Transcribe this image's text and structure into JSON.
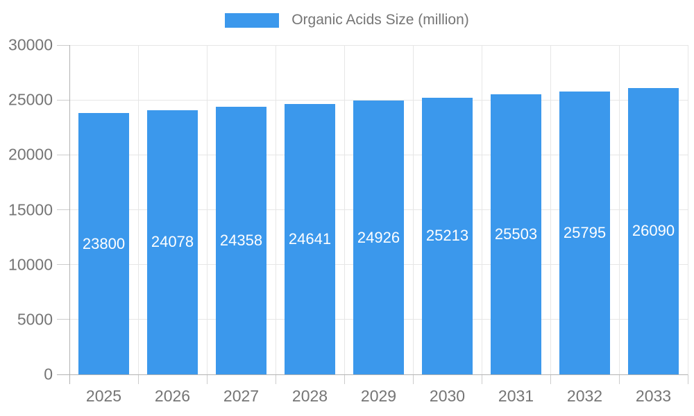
{
  "legend": {
    "label": "Organic Acids Size (million)"
  },
  "colors": {
    "bar": "#3B98EC",
    "text": "#757575",
    "grid": "#E6E6E6",
    "axis": "#B3B3B3",
    "tick": "#CCCCCC",
    "bar_label": "#FFFFFF",
    "background": "#FFFFFF"
  },
  "chart_data": {
    "type": "bar",
    "title": "",
    "legend_entries": [
      "Organic Acids Size (million)"
    ],
    "legend_position": "top-center",
    "categories": [
      "2025",
      "2026",
      "2027",
      "2028",
      "2029",
      "2030",
      "2031",
      "2032",
      "2033"
    ],
    "series": [
      {
        "name": "Organic Acids Size (million)",
        "values": [
          23800,
          24078,
          24358,
          24641,
          24926,
          25213,
          25503,
          25795,
          26090
        ]
      }
    ],
    "bar_value_labels": [
      "23800",
      "24078",
      "24358",
      "24641",
      "24926",
      "25213",
      "25503",
      "25795",
      "26090"
    ],
    "xlabel": "",
    "ylabel": "",
    "ylim": [
      0,
      30000
    ],
    "ytick_step": 5000,
    "ytick_labels": [
      "0",
      "5000",
      "10000",
      "15000",
      "20000",
      "25000",
      "30000"
    ],
    "grid": true
  }
}
